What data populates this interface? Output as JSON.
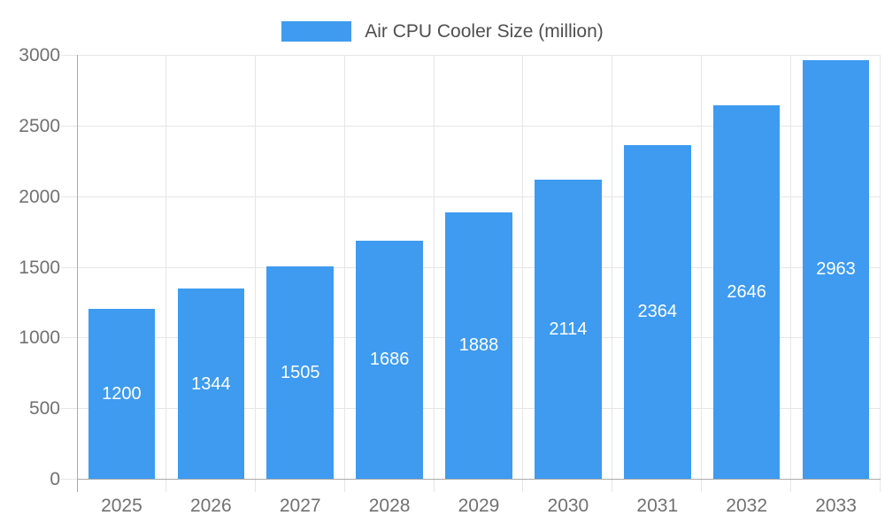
{
  "legend": {
    "label": "Air CPU Cooler Size (million)"
  },
  "colors": {
    "bar": "#3e9bf0",
    "bar_label": "#ffffff",
    "grid": "#e6e6e6",
    "axis_line": "#aaaaaa",
    "axis_text": "#717171",
    "legend_text": "#4f4f4f"
  },
  "chart_data": {
    "type": "bar",
    "title": "Air CPU Cooler Size (million)",
    "categories": [
      "2025",
      "2026",
      "2027",
      "2028",
      "2029",
      "2030",
      "2031",
      "2032",
      "2033"
    ],
    "values": [
      1200,
      1344,
      1505,
      1686,
      1888,
      2114,
      2364,
      2646,
      2963
    ],
    "xlabel": "",
    "ylabel": "",
    "ylim": [
      0,
      3000
    ],
    "y_ticks": [
      0,
      500,
      1000,
      1500,
      2000,
      2500,
      3000
    ],
    "grid": true,
    "legend_position": "top",
    "value_labels": "inside-center"
  }
}
